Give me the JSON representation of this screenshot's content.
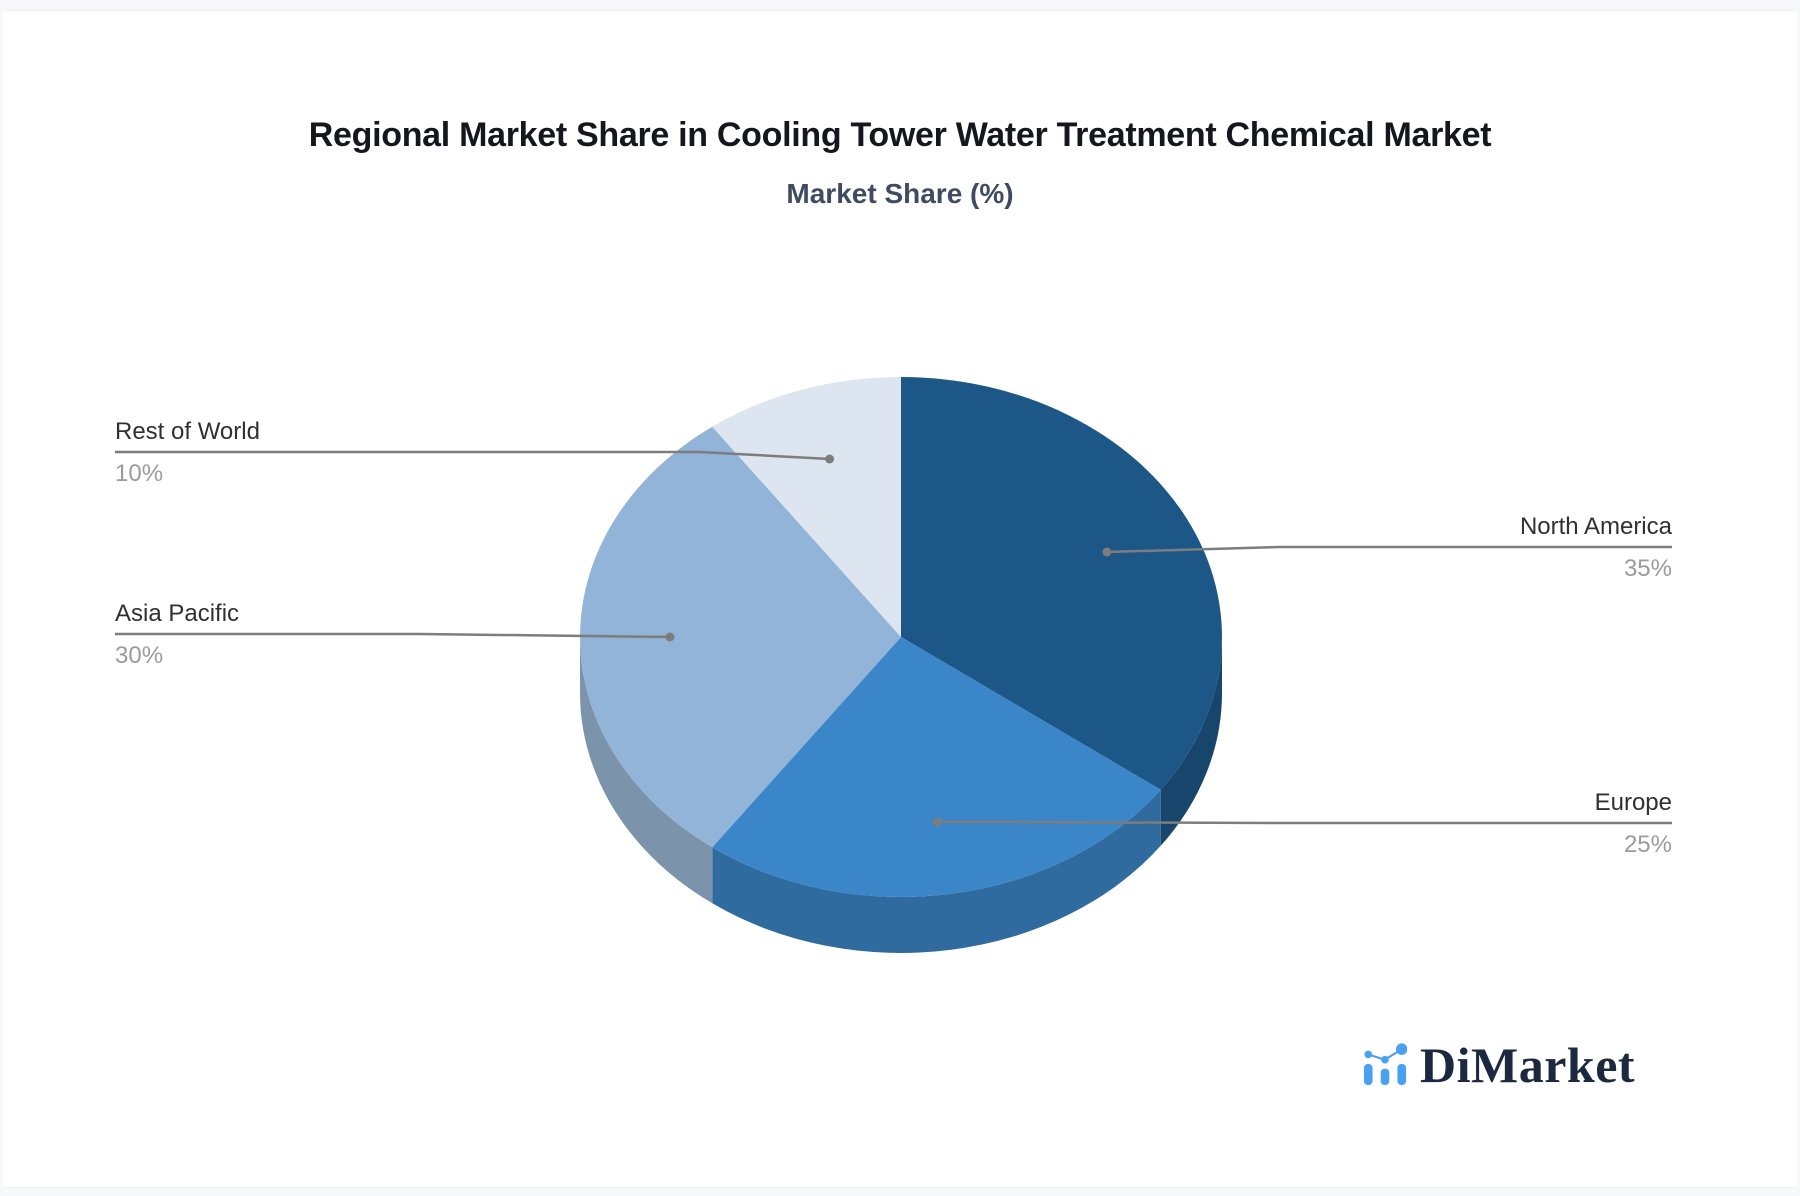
{
  "chart_data": {
    "type": "pie",
    "title": "Regional Market Share in Cooling Tower Water Treatment Chemical Market",
    "subtitle": "Market Share (%)",
    "unit": "%",
    "total": 100,
    "start_angle_deg": 0,
    "direction": "clockwise",
    "legend_position": "none",
    "style": "3d-pie",
    "slices": [
      {
        "label": "North America",
        "value": 35,
        "value_label": "35%",
        "color": "#1d5788",
        "side_color": "#17456b"
      },
      {
        "label": "Europe",
        "value": 25,
        "value_label": "25%",
        "color": "#3a86c8",
        "side_color": "#2f6b9e"
      },
      {
        "label": "Asia Pacific",
        "value": 30,
        "value_label": "30%",
        "color": "#92b4d8",
        "side_color": "#7b93ab"
      },
      {
        "label": "Rest of World",
        "value": 10,
        "value_label": "10%",
        "color": "#dce5f0",
        "side_color": "#c2cfdf"
      }
    ]
  },
  "styles": {
    "title_color": "#15161e",
    "subtitle_color": "#3e4b60",
    "label_color": "#303030",
    "value_color": "#9b9b9b",
    "connector_color": "#7d7d7d",
    "background": "#ffffff",
    "frame_color": "#f7f8fa"
  },
  "logo": {
    "text": "DiMarket",
    "icon": "bar-line-chart-icon",
    "icon_color": "#4aa0f2",
    "text_color": "#1b2940"
  }
}
